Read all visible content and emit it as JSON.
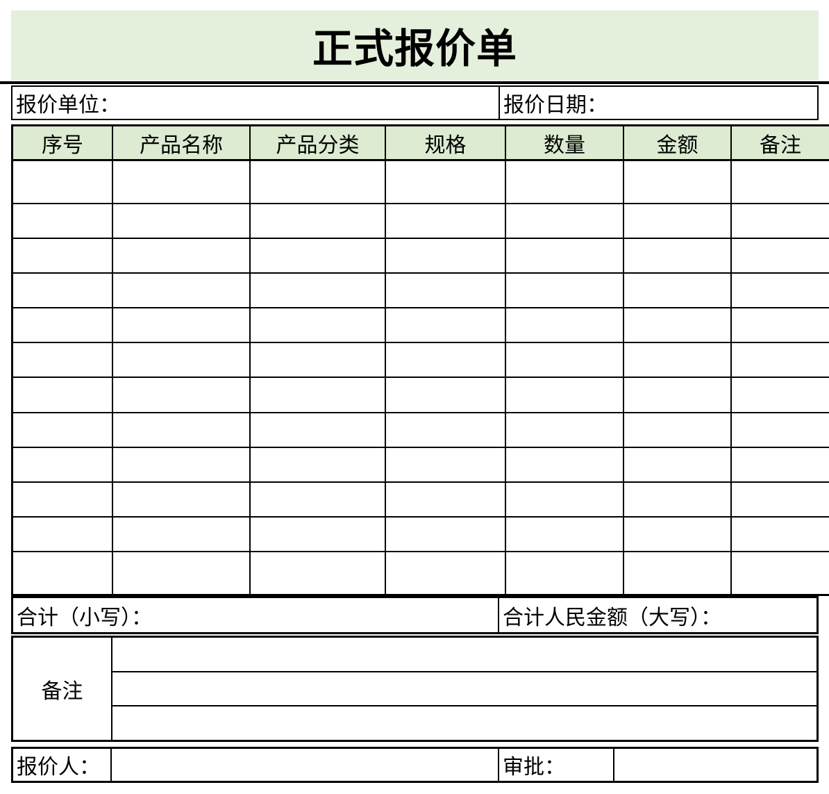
{
  "title": "正式报价单",
  "info": {
    "vendor_label": "报价单位：",
    "date_label": "报价日期：",
    "vendor_value": "",
    "date_value": ""
  },
  "products_table": {
    "headers": [
      "序号",
      "产品名称",
      "产品分类",
      "规格",
      "数量",
      "金额",
      "备注"
    ],
    "empty_row_count": 12
  },
  "totals": {
    "amount_figures_label": "合计（小写）：",
    "amount_figures_value": "",
    "amount_words_label": "合计人民金额（大写）：",
    "amount_words_value": ""
  },
  "remarks": {
    "label": "备注",
    "line_count": 3,
    "lines": [
      "",
      "",
      ""
    ]
  },
  "footer": {
    "quoter_label": "报价人：",
    "quoter_value": "",
    "approver_label": "审批：",
    "approver_value": ""
  },
  "colors": {
    "title_bg": "#e4efdc",
    "header_bg": "#dcebd1",
    "border": "#000000"
  }
}
